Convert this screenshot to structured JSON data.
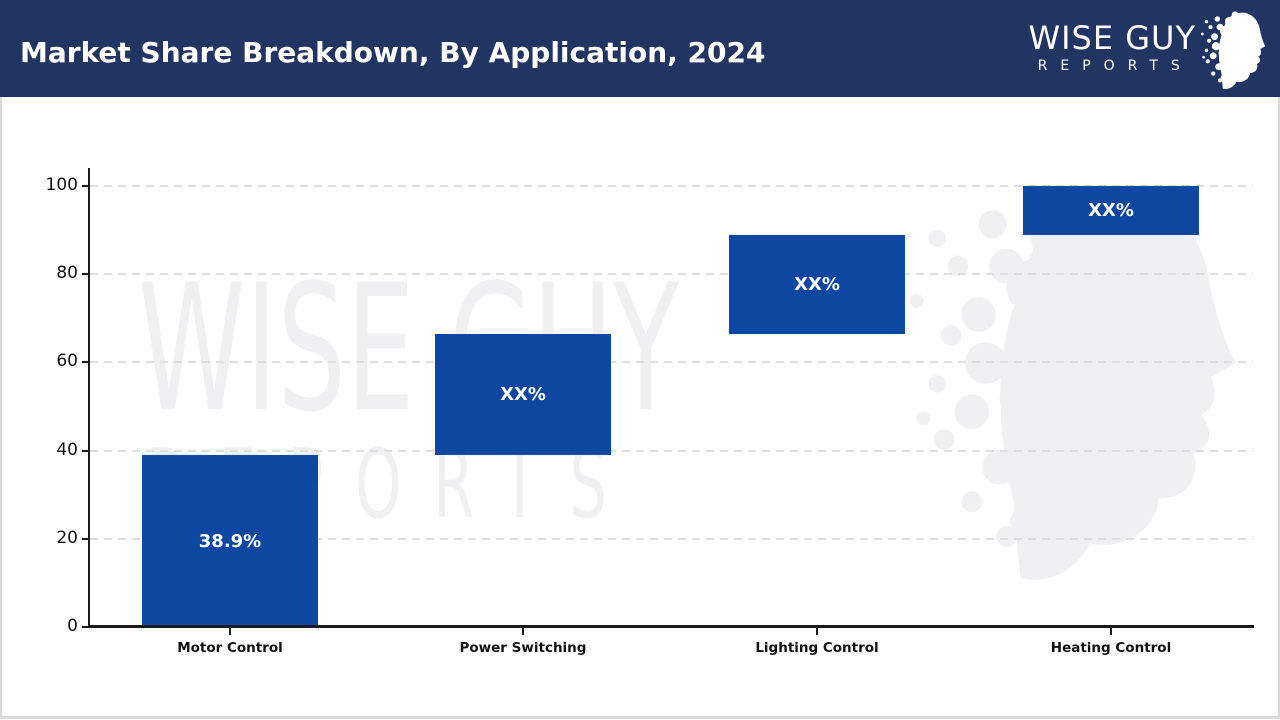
{
  "header": {
    "title": "Market Share Breakdown, By Application, 2024",
    "logo": {
      "line1": "WISE GUY",
      "line2": "REPORTS"
    }
  },
  "watermark": {
    "line1": "WISE GUY",
    "line2": "REPORTS"
  },
  "chart_data": {
    "type": "bar",
    "subtype": "waterfall",
    "title": "Market Share Breakdown, By Application, 2024",
    "categories": [
      "Motor Control",
      "Power Switching",
      "Lighting Control",
      "Heating Control"
    ],
    "segments": [
      {
        "category": "Motor Control",
        "label": "38.9%",
        "start": 0,
        "end": 38.9
      },
      {
        "category": "Power Switching",
        "label": "XX%",
        "start": 38.9,
        "end": 66.4
      },
      {
        "category": "Lighting Control",
        "label": "XX%",
        "start": 66.4,
        "end": 89.0
      },
      {
        "category": "Heating Control",
        "label": "XX%",
        "start": 89.0,
        "end": 100.0
      }
    ],
    "ylim": [
      0,
      100
    ],
    "yticks": [
      0,
      20,
      40,
      60,
      80,
      100
    ],
    "grid": "horizontal dashed",
    "legend": "none"
  },
  "colors": {
    "header_bg": "#223462",
    "bar": "#0d47a1",
    "bar_label": "#ffffff",
    "grid": "#dedede",
    "axis": "#1a1a1a",
    "watermark": "#f0f0f3"
  }
}
